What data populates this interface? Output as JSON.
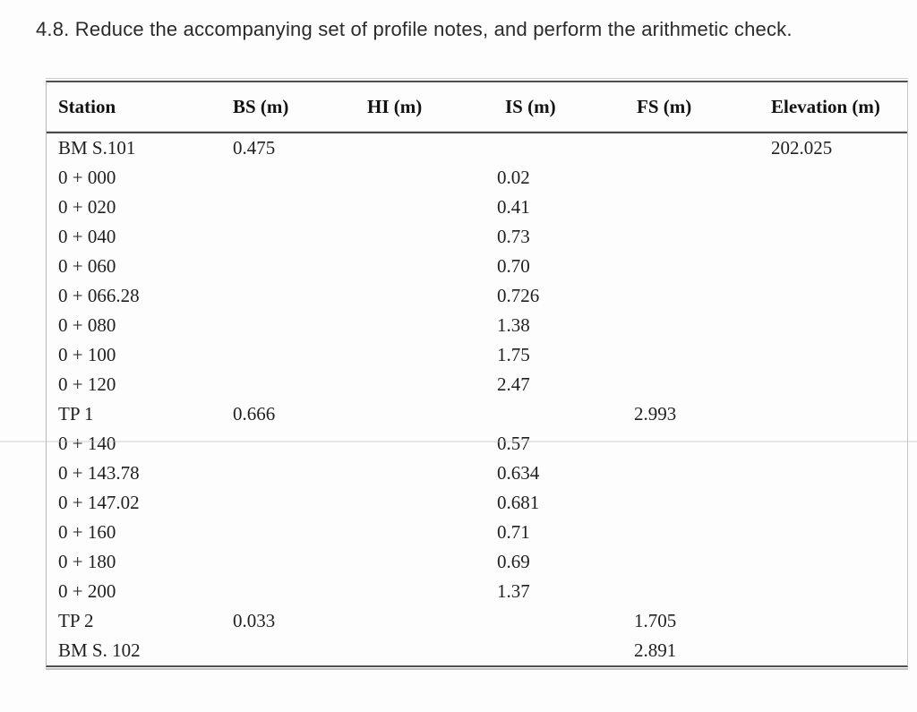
{
  "page": {
    "title": "4.8. Reduce the accompanying set of profile notes, and perform the arithmetic check."
  },
  "table": {
    "columns": [
      "Station",
      "BS (m)",
      "HI (m)",
      "IS (m)",
      "FS (m)",
      "Elevation (m)"
    ],
    "rows": [
      [
        "BM S.101",
        "0.475",
        "",
        "",
        "",
        "202.025"
      ],
      [
        "0 + 000",
        "",
        "",
        "0.02",
        "",
        ""
      ],
      [
        "0 + 020",
        "",
        "",
        "0.41",
        "",
        ""
      ],
      [
        "0 + 040",
        "",
        "",
        "0.73",
        "",
        ""
      ],
      [
        "0 + 060",
        "",
        "",
        "0.70",
        "",
        ""
      ],
      [
        "0 + 066.28",
        "",
        "",
        "0.726",
        "",
        ""
      ],
      [
        "0 + 080",
        "",
        "",
        "1.38",
        "",
        ""
      ],
      [
        "0 + 100",
        "",
        "",
        "1.75",
        "",
        ""
      ],
      [
        "0 + 120",
        "",
        "",
        "2.47",
        "",
        ""
      ],
      [
        "TP 1",
        "0.666",
        "",
        "",
        "2.993",
        ""
      ],
      [
        "0 + 140",
        "",
        "",
        "0.57",
        "",
        ""
      ],
      [
        "0 + 143.78",
        "",
        "",
        "0.634",
        "",
        ""
      ],
      [
        "0 + 147.02",
        "",
        "",
        "0.681",
        "",
        ""
      ],
      [
        "0 + 160",
        "",
        "",
        "0.71",
        "",
        ""
      ],
      [
        "0 + 180",
        "",
        "",
        "0.69",
        "",
        ""
      ],
      [
        "0 + 200",
        "",
        "",
        "1.37",
        "",
        ""
      ],
      [
        "TP 2",
        "0.033",
        "",
        "",
        "1.705",
        ""
      ],
      [
        "BM S. 102",
        "",
        "",
        "",
        "2.891",
        ""
      ]
    ]
  },
  "colors": {
    "text": "#1f1f1f",
    "border_dark": "#4a4a4a",
    "border_light": "#bdbdbd",
    "background": "#fdfdfd"
  }
}
